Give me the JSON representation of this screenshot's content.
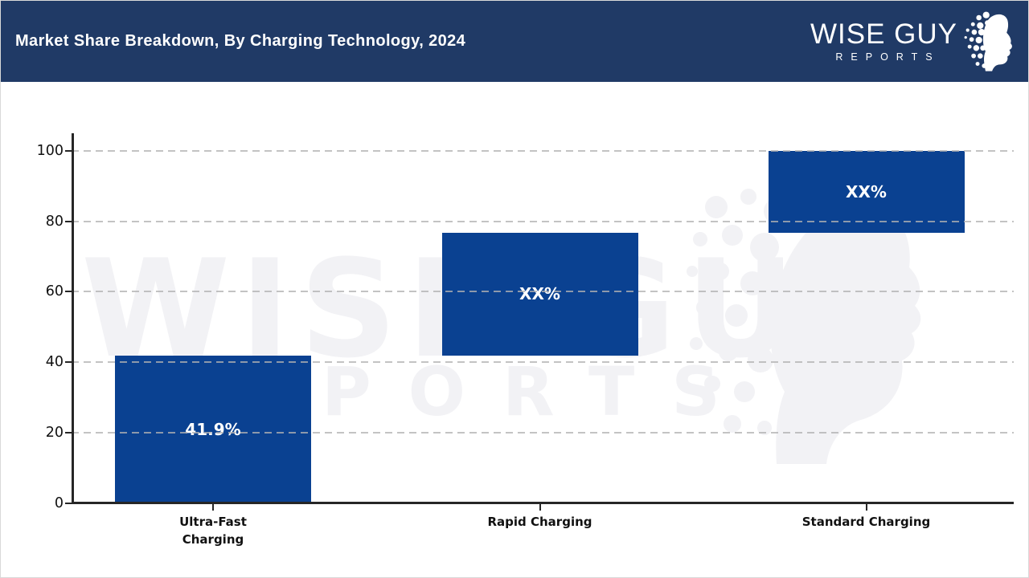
{
  "header": {
    "title": "Market Share Breakdown, By Charging Technology, 2024",
    "bg_color": "#203a66",
    "logo": {
      "line1": "WISE GUY",
      "line2": "REPORTS"
    }
  },
  "watermark": {
    "line1": "WISE GUY",
    "line2": "REPORTS"
  },
  "chart_data": {
    "type": "bar",
    "subtype": "floating-segment-waterfall",
    "title": "Market Share Breakdown, By Charging Technology, 2024",
    "categories": [
      "Ultra-Fast\nCharging",
      "Rapid Charging",
      "Standard Charging"
    ],
    "series": [
      {
        "name": "Market Share",
        "segments": [
          [
            0,
            41.9
          ],
          [
            41.9,
            76.7
          ],
          [
            76.7,
            100
          ]
        ],
        "labels": [
          "41.9%",
          "XX%",
          "XX%"
        ]
      }
    ],
    "xlabel": "",
    "ylabel": "",
    "ylim": [
      0,
      100
    ],
    "yticks": [
      0,
      20,
      40,
      60,
      80,
      100
    ],
    "grid": "horizontal-dashed",
    "legend": "none",
    "bar_color": "#0a4191",
    "bar_label_color": "#ffffff",
    "axis_color": "#262626",
    "gridline_color": "#d4d4d4"
  }
}
